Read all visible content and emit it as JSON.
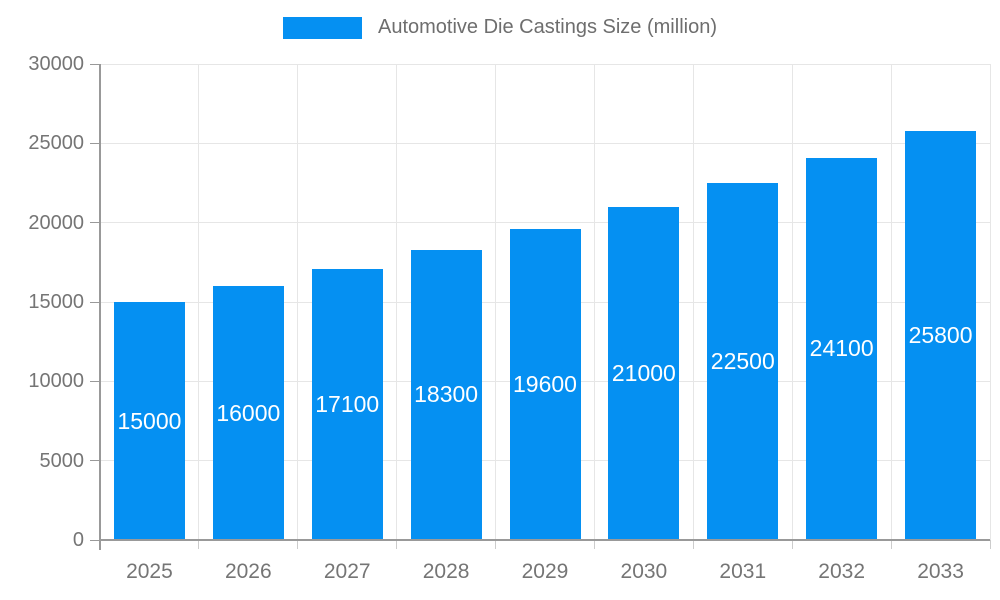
{
  "legend": {
    "label": "Automotive Die Castings Size (million)",
    "swatch_color": "#0590f2"
  },
  "chart_data": {
    "type": "bar",
    "title": "",
    "categories": [
      "2025",
      "2026",
      "2027",
      "2028",
      "2029",
      "2030",
      "2031",
      "2032",
      "2033"
    ],
    "series": [
      {
        "name": "Automotive Die Castings Size (million)",
        "values": [
          15000,
          16000,
          17100,
          18300,
          19600,
          21000,
          22500,
          24100,
          25800
        ]
      }
    ],
    "xlabel": "",
    "ylabel": "",
    "ylim": [
      0,
      30000
    ],
    "yticks": [
      0,
      5000,
      10000,
      15000,
      20000,
      25000,
      30000
    ],
    "grid": true,
    "legend_position": "top-center",
    "value_labels": "inside-center",
    "colors": {
      "bar": "#0590f2",
      "grid": "#e6e6e6",
      "axis": "#999999",
      "boundary_tick": "#cccccc",
      "axis_text": "#757575",
      "value_text": "#ffffff",
      "background": "#ffffff"
    }
  }
}
